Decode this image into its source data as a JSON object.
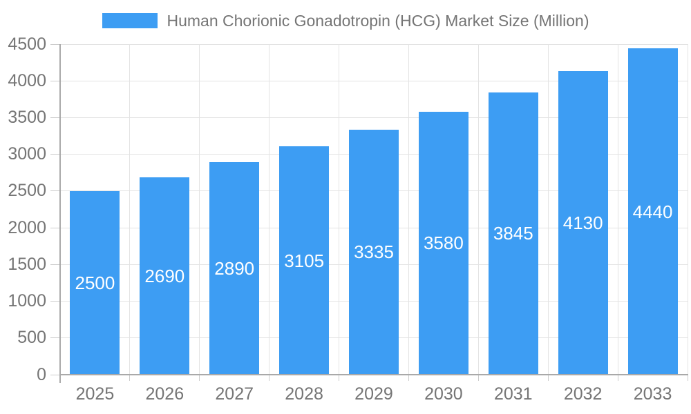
{
  "legend": {
    "label": "Human Chorionic Gonadotropin (HCG) Market Size (Million)"
  },
  "chart_data": {
    "type": "bar",
    "title": "Human Chorionic Gonadotropin (HCG) Market Size (Million)",
    "categories": [
      "2025",
      "2026",
      "2027",
      "2028",
      "2029",
      "2030",
      "2031",
      "2032",
      "2033"
    ],
    "values": [
      2500,
      2690,
      2890,
      3105,
      3335,
      3580,
      3845,
      4130,
      4440
    ],
    "series": [
      {
        "name": "Human Chorionic Gonadotropin (HCG) Market Size (Million)",
        "values": [
          2500,
          2690,
          2890,
          3105,
          3335,
          3580,
          3845,
          4130,
          4440
        ]
      }
    ],
    "xlabel": "",
    "ylabel": "",
    "ylim": [
      0,
      4500
    ],
    "ytick_step": 500,
    "yticks": [
      0,
      500,
      1000,
      1500,
      2000,
      2500,
      3000,
      3500,
      4000,
      4500
    ],
    "grid": true,
    "legend_position": "top",
    "bar_color": "#3d9df3",
    "bar_label_color": "#ffffff",
    "axis_text_color": "#757575",
    "gridline_color": "#e3e3e3",
    "axis_line_color": "#a9a9a9",
    "tick_color": "#cccccc"
  }
}
